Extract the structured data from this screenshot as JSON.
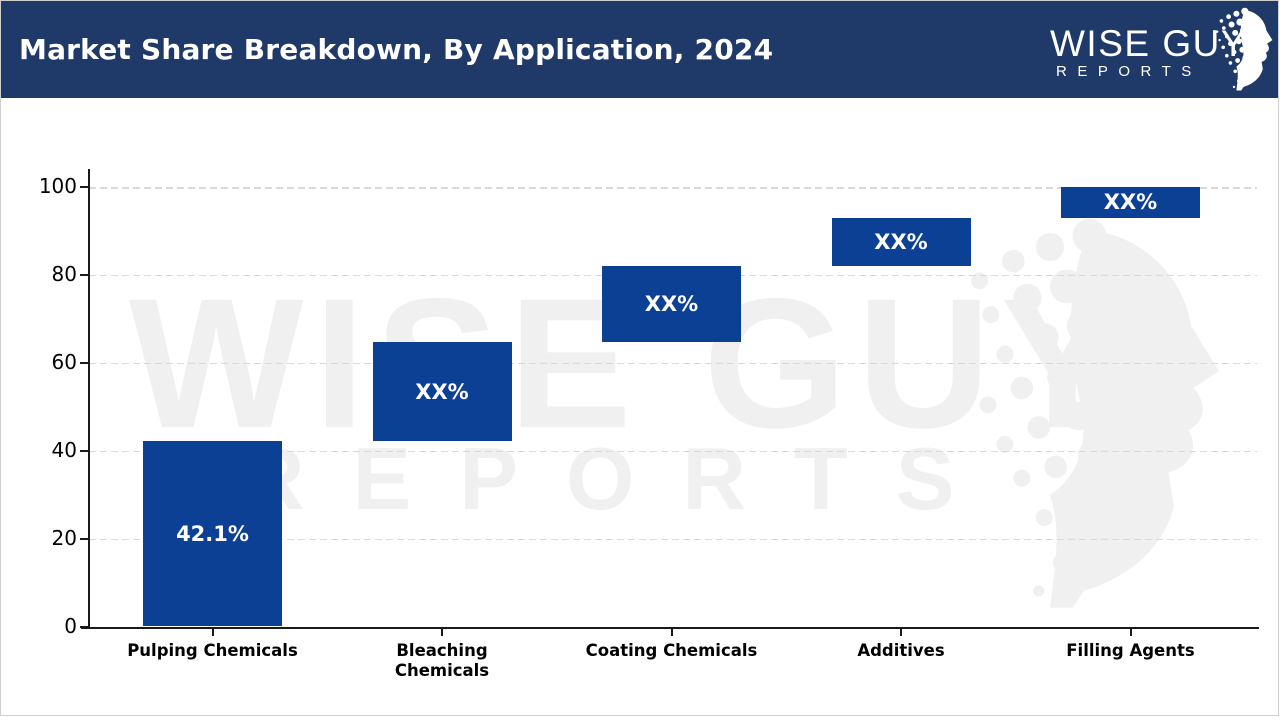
{
  "header": {
    "title": "Market Share Breakdown, By Application, 2024",
    "logo": {
      "line1": "WISE GUY",
      "line2": "REPORTS"
    }
  },
  "watermark": {
    "line1": "WISE GUY",
    "line2": "REPORTS"
  },
  "chart_data": {
    "type": "bar",
    "subtype": "waterfall",
    "title": "Market Share Breakdown, By Application, 2024",
    "categories": [
      "Pulping Chemicals",
      "Bleaching\nChemicals",
      "Coating Chemicals",
      "Additives",
      "Filling Agents"
    ],
    "bars": [
      {
        "category": "Pulping Chemicals",
        "start": 0,
        "end": 42.1,
        "label": "42.1%"
      },
      {
        "category": "Bleaching Chemicals",
        "start": 42.1,
        "end": 64.8,
        "label": "XX%"
      },
      {
        "category": "Coating Chemicals",
        "start": 64.8,
        "end": 82.0,
        "label": "XX%"
      },
      {
        "category": "Additives",
        "start": 82.0,
        "end": 93.0,
        "label": "XX%"
      },
      {
        "category": "Filling Agents",
        "start": 93.0,
        "end": 100.0,
        "label": "XX%"
      }
    ],
    "yticks": [
      0,
      20,
      40,
      60,
      80,
      100
    ],
    "ylim": [
      0,
      104
    ],
    "xlabel": "",
    "ylabel": "",
    "grid": "horizontal-dashed",
    "legend": "none",
    "bar_color": "#0b4095",
    "bar_label_color": "#ffffff"
  },
  "colors": {
    "header_bg": "#1f3a68",
    "bar": "#0b4095",
    "grid": "#d9d9d9",
    "axis": "#1a1a1a",
    "watermark": "#f0f0f0",
    "card_border": "#cfcfcf"
  }
}
